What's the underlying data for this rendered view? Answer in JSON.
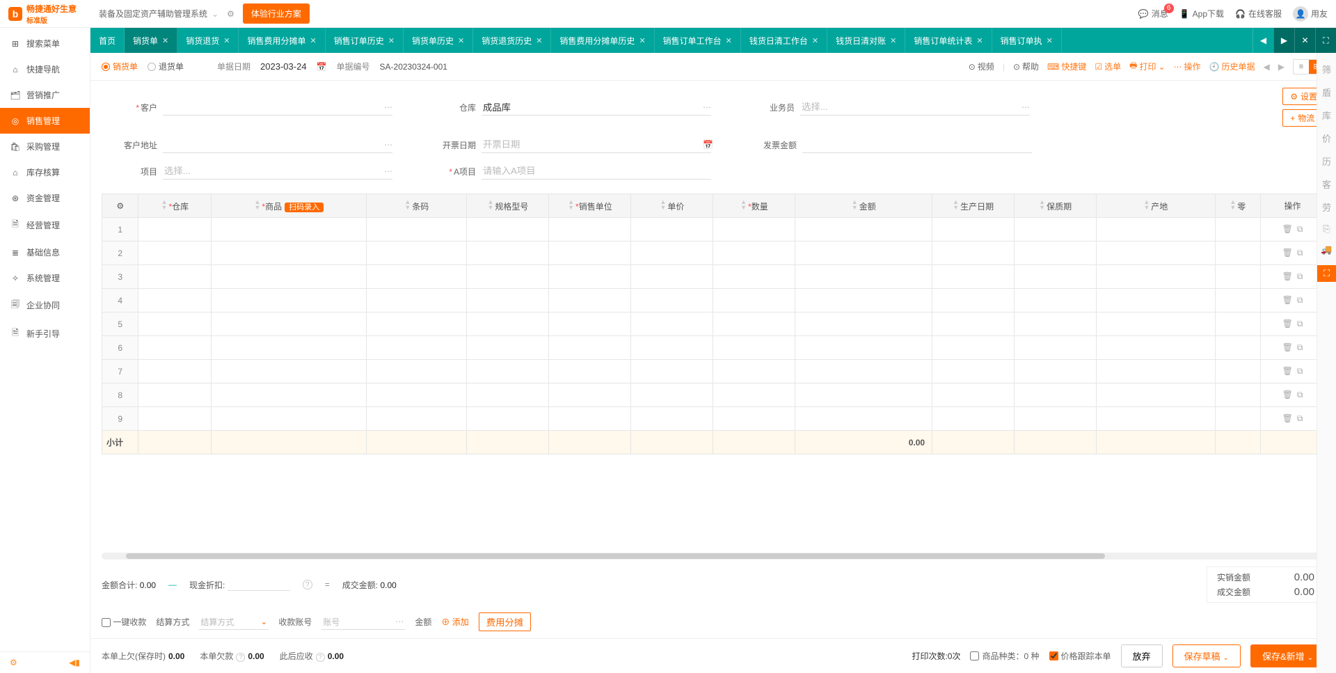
{
  "logo": {
    "name": "畅捷通好生意",
    "edition": "标准版"
  },
  "system_selector": "装备及固定资产辅助管理系统",
  "experience_btn": "体验行业方案",
  "topbar": {
    "msg": "消息",
    "msg_badge": "6",
    "download": "App下载",
    "service": "在线客服",
    "user": "用友"
  },
  "sidebar": [
    {
      "icon": "⊞",
      "label": "搜索菜单"
    },
    {
      "icon": "⌂",
      "label": "快捷导航"
    },
    {
      "icon": "🗂",
      "label": "营销推广"
    },
    {
      "icon": "◎",
      "label": "销售管理",
      "active": true
    },
    {
      "icon": "🛍",
      "label": "采购管理"
    },
    {
      "icon": "⌂",
      "label": "库存核算"
    },
    {
      "icon": "⊛",
      "label": "资金管理"
    },
    {
      "icon": "🗎",
      "label": "经营管理"
    },
    {
      "icon": "≣",
      "label": "基础信息"
    },
    {
      "icon": "✧",
      "label": "系统管理"
    },
    {
      "icon": "🗐",
      "label": "企业协同"
    },
    {
      "icon": "🗎",
      "label": "新手引导"
    }
  ],
  "tabs": [
    {
      "label": "首页",
      "home": true
    },
    {
      "label": "销货单",
      "active": true,
      "closable": true
    },
    {
      "label": "销货退货",
      "closable": true
    },
    {
      "label": "销售费用分摊单",
      "closable": true
    },
    {
      "label": "销售订单历史",
      "closable": true
    },
    {
      "label": "销货单历史",
      "closable": true
    },
    {
      "label": "销货退货历史",
      "closable": true
    },
    {
      "label": "销售费用分摊单历史",
      "closable": true
    },
    {
      "label": "销售订单工作台",
      "closable": true
    },
    {
      "label": "钱货日清工作台",
      "closable": true
    },
    {
      "label": "钱货日清对账",
      "closable": true
    },
    {
      "label": "销售订单统计表",
      "closable": true
    },
    {
      "label": "销售订单执",
      "closable": true
    }
  ],
  "toolbar": {
    "radio_sales": "销货单",
    "radio_return": "退货单",
    "date_label": "单据日期",
    "date_value": "2023-03-24",
    "docno_label": "单据编号",
    "docno_value": "SA-20230324-001",
    "video": "视频",
    "help": "帮助",
    "hotkey": "快捷键",
    "select": "选单",
    "print": "打印",
    "operate": "操作",
    "history": "历史单据"
  },
  "form": {
    "customer": "客户",
    "warehouse": "仓库",
    "warehouse_val": "成品库",
    "sales": "业务员",
    "sales_ph": "选择...",
    "settings": "设置",
    "logistics": "物流",
    "addr": "客户地址",
    "invoice_date": "开票日期",
    "invoice_date_ph": "开票日期",
    "invoice_amt": "发票金额",
    "project": "项目",
    "project_ph": "选择...",
    "a_project": "A项目",
    "a_project_ph": "请输入A项目"
  },
  "columns": [
    "仓库",
    "商品",
    "条码",
    "规格型号",
    "销售单位",
    "单价",
    "数量",
    "金额",
    "生产日期",
    "保质期",
    "产地",
    "零",
    "操作"
  ],
  "required_cols": [
    0,
    1,
    4,
    6
  ],
  "scan_btn": "扫码录入",
  "row_count": 9,
  "subtotal_label": "小计",
  "subtotal_amount": "0.00",
  "summary": {
    "total_label": "金额合计:",
    "total_val": "0.00",
    "discount_label": "现金折扣:",
    "deal_label": "成交金额:",
    "deal_val": "0.00",
    "net_label": "实销金额",
    "net_val": "0.00",
    "final_label": "成交金额",
    "final_val": "0.00"
  },
  "payrow": {
    "onekey": "一键收款",
    "settle_label": "结算方式",
    "settle_ph": "结算方式",
    "acct_label": "收款账号",
    "acct_ph": "账号",
    "amount_label": "金额",
    "add": "添加",
    "fee": "费用分摊"
  },
  "footer": {
    "prev_due": "本单上欠(保存时)",
    "prev_due_v": "0.00",
    "this_due": "本单欠款",
    "this_due_v": "0.00",
    "after_due": "此后应收",
    "after_due_v": "0.00",
    "print_count": "打印次数:0次",
    "sku_count": "商品种类：0 种",
    "price_track": "价格跟踪本单",
    "discard": "放弃",
    "save_draft": "保存草稿",
    "save_new": "保存&新增"
  },
  "rail": [
    "筛",
    "盾",
    "库",
    "价",
    "历",
    "客",
    "劳",
    "⎘",
    "🚚",
    "⛶"
  ]
}
